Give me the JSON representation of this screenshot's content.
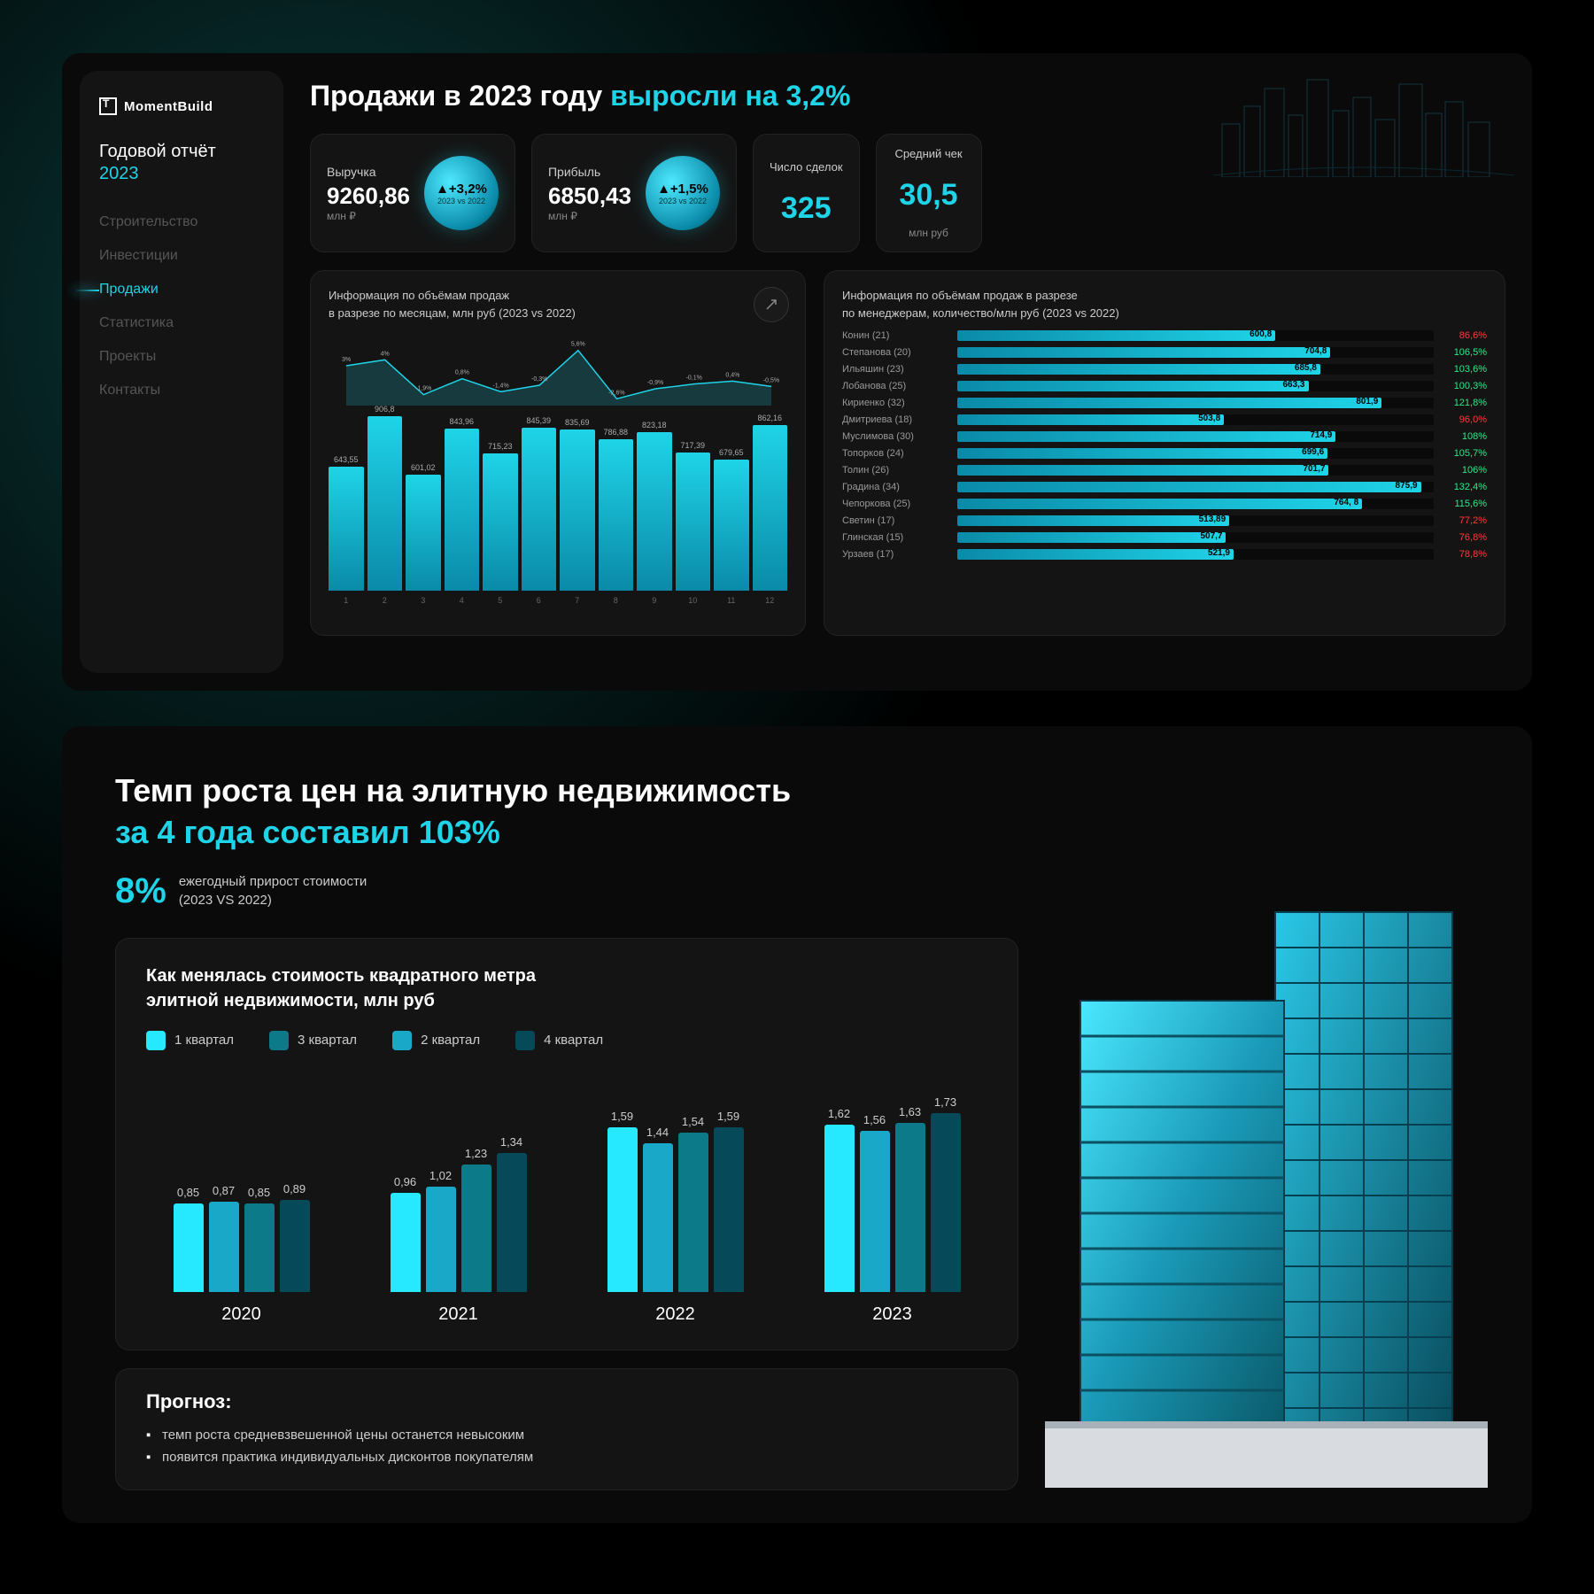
{
  "brand": "MomentBuild",
  "sidebar": {
    "title": "Годовой отчёт",
    "year": "2023",
    "items": [
      "Строительство",
      "Инвестиции",
      "Продажи",
      "Статистика",
      "Проекты",
      "Контакты"
    ],
    "active_index": 2
  },
  "headline": {
    "part1": "Продажи в 2023 году ",
    "part2": "выросли на 3,2%"
  },
  "kpis": [
    {
      "label": "Выручка",
      "value": "9260,86",
      "unit": "млн ₽",
      "delta": "▲+3,2%",
      "sub": "2023 vs 2022"
    },
    {
      "label": "Прибыль",
      "value": "6850,43",
      "unit": "млн ₽",
      "delta": "▲+1,5%",
      "sub": "2023 vs 2022"
    }
  ],
  "kpis_simple": [
    {
      "label": "Число сделок",
      "value": "325",
      "unit": ""
    },
    {
      "label": "Средний чек",
      "value": "30,5",
      "unit": "млн руб"
    }
  ],
  "monthly": {
    "title": "Информация по объёмам продаж\nв разрезе по месяцам, млн руб (2023 vs 2022)",
    "bars": [
      643.55,
      906.8,
      601.02,
      843.96,
      715.23,
      845.39,
      835.69,
      786.88,
      823.18,
      717.39,
      679.65,
      862.16
    ],
    "bar_labels": [
      "643,55",
      "906,8",
      "601,02",
      "843,96",
      "715,23",
      "845,39",
      "835,69",
      "786,88",
      "823,18",
      "717,39",
      "679,65",
      "862,16"
    ],
    "line_pct": [
      "3%",
      "4%",
      "-1,9%",
      "0,8%",
      "-1,4%",
      "-0,3%",
      "5,6%",
      "-2,6%",
      "-0,9%",
      "-0,1%",
      "0,4%",
      "-0,5%"
    ],
    "x": [
      "1",
      "2",
      "3",
      "4",
      "5",
      "6",
      "7",
      "8",
      "9",
      "10",
      "11",
      "12"
    ],
    "ymax": 920,
    "bar_color_top": "#1fd4e8",
    "bar_color_bot": "#0a8aa8"
  },
  "managers": {
    "title": "Информация по объёмам продаж в разрезе\nпо менеджерам, количество/млн руб (2023 vs 2022)",
    "max": 900,
    "rows": [
      {
        "name": "Конин (21)",
        "val": 600.8,
        "label": "600,8",
        "pct": "86,6%",
        "cls": "pct-red"
      },
      {
        "name": "Степанова (20)",
        "val": 704.8,
        "label": "704,8",
        "pct": "106,5%",
        "cls": "pct-green"
      },
      {
        "name": "Ильяшин (23)",
        "val": 685.8,
        "label": "685,8",
        "pct": "103,6%",
        "cls": "pct-green"
      },
      {
        "name": "Лобанова (25)",
        "val": 663.3,
        "label": "663,3",
        "pct": "100,3%",
        "cls": "pct-green"
      },
      {
        "name": "Кириенко (32)",
        "val": 801.9,
        "label": "801,9",
        "pct": "121,8%",
        "cls": "pct-green"
      },
      {
        "name": "Дмитриева (18)",
        "val": 503.8,
        "label": "503,8",
        "pct": "96,0%",
        "cls": "pct-red"
      },
      {
        "name": "Муслимова (30)",
        "val": 714.9,
        "label": "714,9",
        "pct": "108%",
        "cls": "pct-green"
      },
      {
        "name": "Топорков (24)",
        "val": 699.6,
        "label": "699,6",
        "pct": "105,7%",
        "cls": "pct-green"
      },
      {
        "name": "Толин (26)",
        "val": 701.7,
        "label": "701,7",
        "pct": "106%",
        "cls": "pct-green"
      },
      {
        "name": "Градина (34)",
        "val": 875.9,
        "label": "875,9",
        "pct": "132,4%",
        "cls": "pct-green"
      },
      {
        "name": "Чепоркова (25)",
        "val": 764.8,
        "label": "764, 8",
        "pct": "115,6%",
        "cls": "pct-green"
      },
      {
        "name": "Светин (17)",
        "val": 513.89,
        "label": "513,89",
        "pct": "77,2%",
        "cls": "pct-red"
      },
      {
        "name": "Глинская (15)",
        "val": 507.7,
        "label": "507,7",
        "pct": "76,8%",
        "cls": "pct-red"
      },
      {
        "name": "Урзаев (17)",
        "val": 521.9,
        "label": "521,9",
        "pct": "78,8%",
        "cls": "pct-red"
      }
    ]
  },
  "panel2": {
    "head1": "Темп роста цен на элитную недвижимость",
    "head2": "за 4 года составил 103%",
    "pct": "8%",
    "subtext": "ежегодный прирост стоимости\n(2023 VS 2022)",
    "q_title": "Как менялась стоимость квадратного метра\nэлитной недвижимости, млн руб",
    "legend": [
      {
        "label": "1 квартал",
        "color": "#26e8ff"
      },
      {
        "label": "3 квартал",
        "color": "#0d7a8a"
      },
      {
        "label": "2 квартал",
        "color": "#1aa8c8"
      },
      {
        "label": "4 квартал",
        "color": "#064a5a"
      }
    ],
    "colors": [
      "#26e8ff",
      "#1aa8c8",
      "#0d7a8a",
      "#064a5a"
    ],
    "ymax": 1.8,
    "years": [
      {
        "year": "2020",
        "vals": [
          0.85,
          0.87,
          0.85,
          0.89
        ],
        "labels": [
          "0,85",
          "0,87",
          "0,85",
          "0,89"
        ]
      },
      {
        "year": "2021",
        "vals": [
          0.96,
          1.02,
          1.23,
          1.34
        ],
        "labels": [
          "0,96",
          "1,02",
          "1,23",
          "1,34"
        ]
      },
      {
        "year": "2022",
        "vals": [
          1.59,
          1.44,
          1.54,
          1.59
        ],
        "labels": [
          "1,59",
          "1,44",
          "1,54",
          "1,59"
        ]
      },
      {
        "year": "2023",
        "vals": [
          1.62,
          1.56,
          1.63,
          1.73
        ],
        "labels": [
          "1,62",
          "1,56",
          "1,63",
          "1,73"
        ]
      }
    ],
    "forecast_title": "Прогноз:",
    "forecast": [
      "темп роста средневзвешенной цены останется невысоким",
      "появится практика индивидуальных дисконтов покупателям"
    ]
  }
}
